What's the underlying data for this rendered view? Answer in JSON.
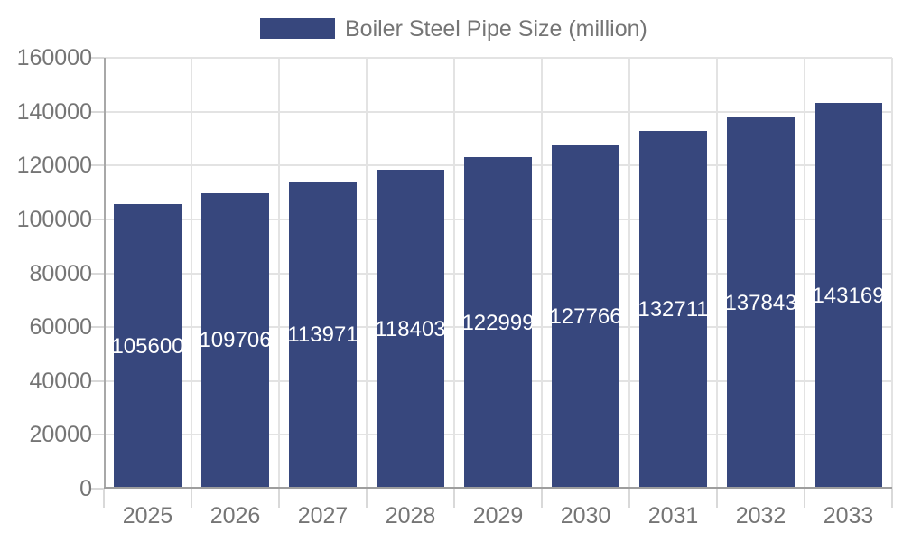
{
  "chart_data": {
    "type": "bar",
    "title": "",
    "legend_label": "Boiler Steel Pipe Size (million)",
    "legend_position": "top",
    "categories": [
      "2025",
      "2026",
      "2027",
      "2028",
      "2029",
      "2030",
      "2031",
      "2032",
      "2033"
    ],
    "values": [
      105600,
      109706,
      113971,
      118403,
      122999,
      127766,
      132711,
      137843,
      143169
    ],
    "bar_labels": [
      "105600",
      "109706",
      "113971",
      "118403",
      "122999",
      "127766",
      "132711",
      "137843",
      "143169"
    ],
    "xlabel": "",
    "ylabel": "",
    "ylim": [
      0,
      160000
    ],
    "yticks": [
      0,
      20000,
      40000,
      60000,
      80000,
      100000,
      120000,
      140000,
      160000
    ],
    "ytick_labels": [
      "0",
      "20000",
      "40000",
      "60000",
      "80000",
      "100000",
      "120000",
      "140000",
      "160000"
    ],
    "grid": true
  },
  "style": {
    "bar_color": "#37477d",
    "bar_value_text_color": "#ffffff",
    "legend_text_color": "#757575",
    "tick_label_color": "#757575",
    "grid_color": "#e3e3e3",
    "tick_mark_color": "#d9d9d9",
    "x_axis_color": "#9e9e9e",
    "y_axis_color": "#a8a8a8",
    "background_color": "#ffffff"
  }
}
